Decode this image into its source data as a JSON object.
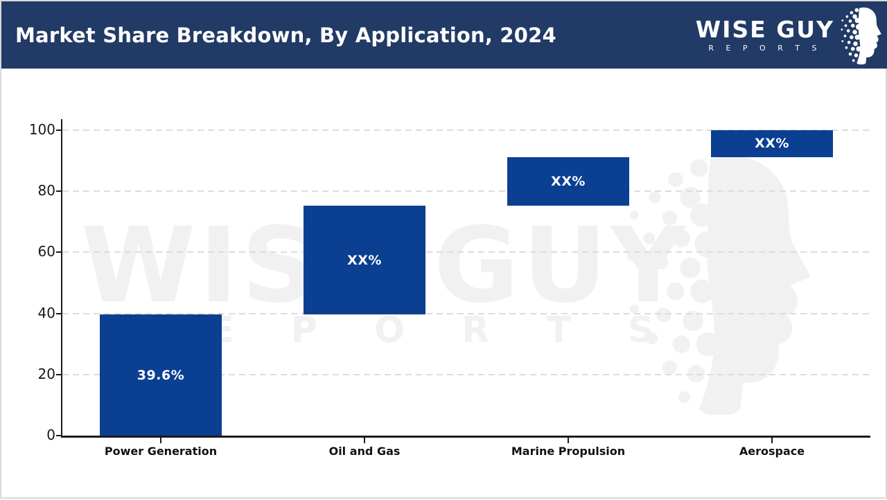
{
  "header": {
    "title": "Market Share Breakdown, By Application, 2024",
    "logo_line1": "WISE GUY",
    "logo_line2": "R E P O R T S",
    "bg_color": "#213a66"
  },
  "watermark": {
    "line1": "WISE GUY",
    "line2": "R E P O R T S",
    "color": "#f1f1f1"
  },
  "chart_data": {
    "type": "bar",
    "variant": "waterfall",
    "title": "Market Share Breakdown, By Application, 2024",
    "categories": [
      "Power Generation",
      "Oil and Gas",
      "Marine Propulsion",
      "Aerospace"
    ],
    "segments": [
      {
        "category": "Power Generation",
        "start": 0,
        "end": 39.6,
        "value": 39.6,
        "label": "39.6%"
      },
      {
        "category": "Oil and Gas",
        "start": 39.6,
        "end": 75.2,
        "value": 35.6,
        "label": "XX%"
      },
      {
        "category": "Marine Propulsion",
        "start": 75.2,
        "end": 91.2,
        "value": 16.0,
        "label": "XX%"
      },
      {
        "category": "Aerospace",
        "start": 91.2,
        "end": 100,
        "value": 8.8,
        "label": "XX%"
      }
    ],
    "xlabel": "",
    "ylabel": "",
    "ylim": [
      0,
      100
    ],
    "yticks": [
      0,
      20,
      40,
      60,
      80,
      100
    ],
    "grid": "horizontal-dashed",
    "legend": "none",
    "bar_color": "#0b3f92",
    "bar_label_color": "#ffffff",
    "axis_color": "#1a1a1a",
    "gridline_color": "#dcdcdc"
  }
}
